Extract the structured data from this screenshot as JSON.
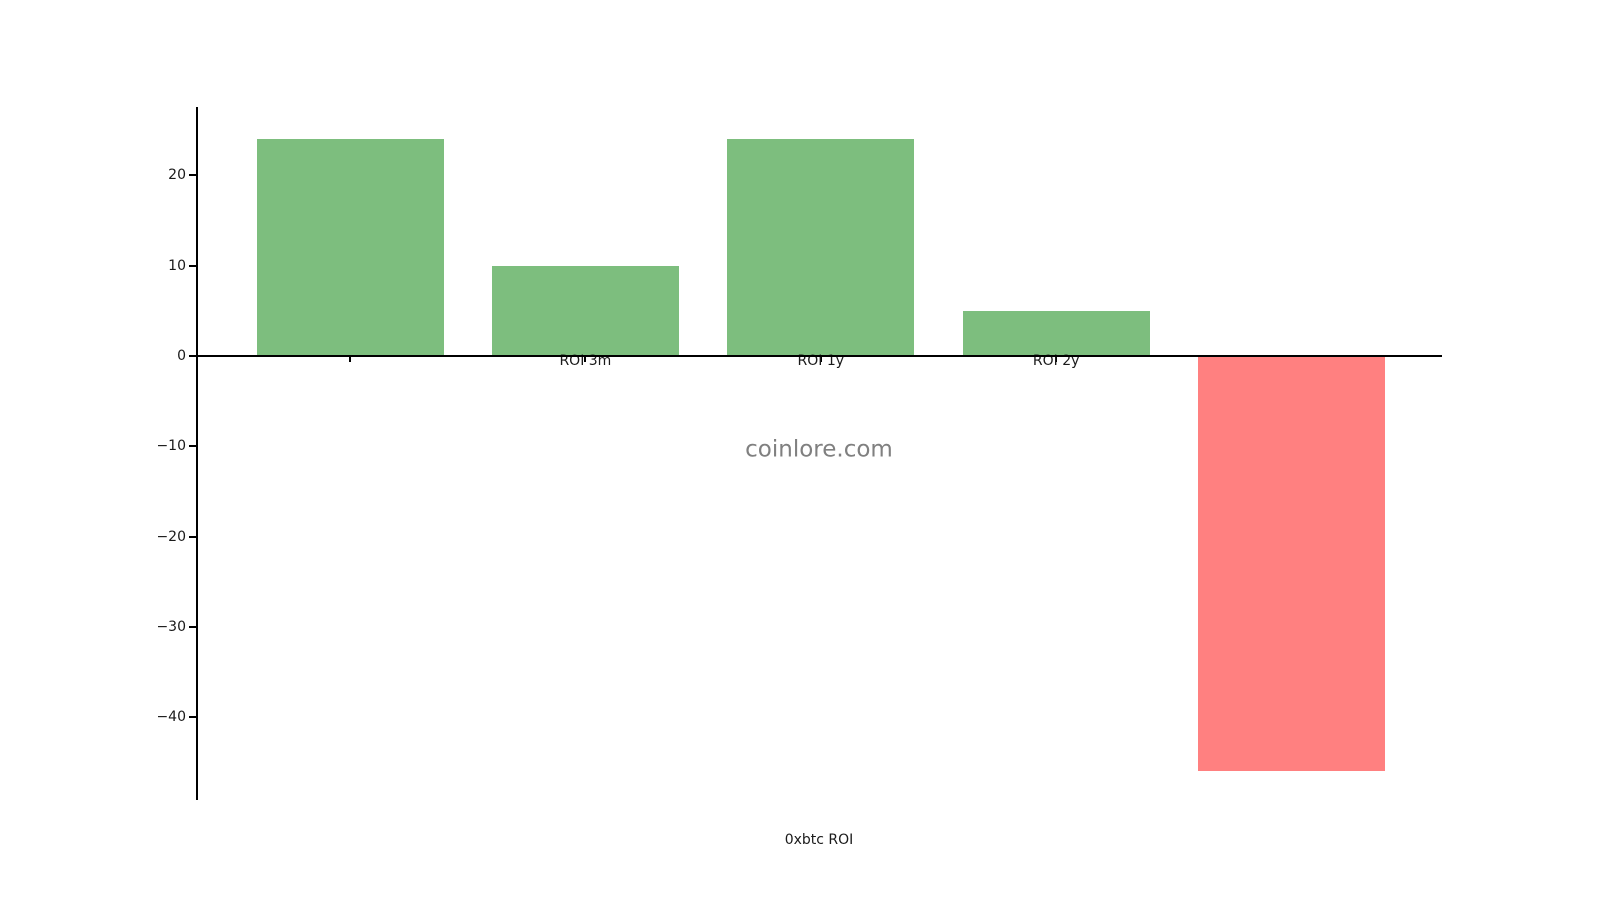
{
  "watermark": {
    "text": "coinlore.com",
    "color": "#808080"
  },
  "chart_data": {
    "type": "bar",
    "title": "",
    "xlabel": "0xbtc ROI",
    "ylabel": "",
    "categories": [
      "",
      "ROI 3m",
      "ROI 1y",
      "ROI 2y",
      ""
    ],
    "values": [
      24,
      10,
      24,
      5,
      -46
    ],
    "y_ticks": [
      20,
      10,
      0,
      -10,
      -20,
      -30,
      -40
    ],
    "y_tick_labels": [
      "20",
      "10",
      "0",
      "−10",
      "−20",
      "−30",
      "−40"
    ],
    "ylim": [
      -49.2,
      27.6
    ],
    "grid": false,
    "legend": false,
    "positive_color": "#7dbe7e",
    "negative_color": "#ff8080",
    "axis_color": "#000000",
    "text_color": "#1a1a1a"
  }
}
